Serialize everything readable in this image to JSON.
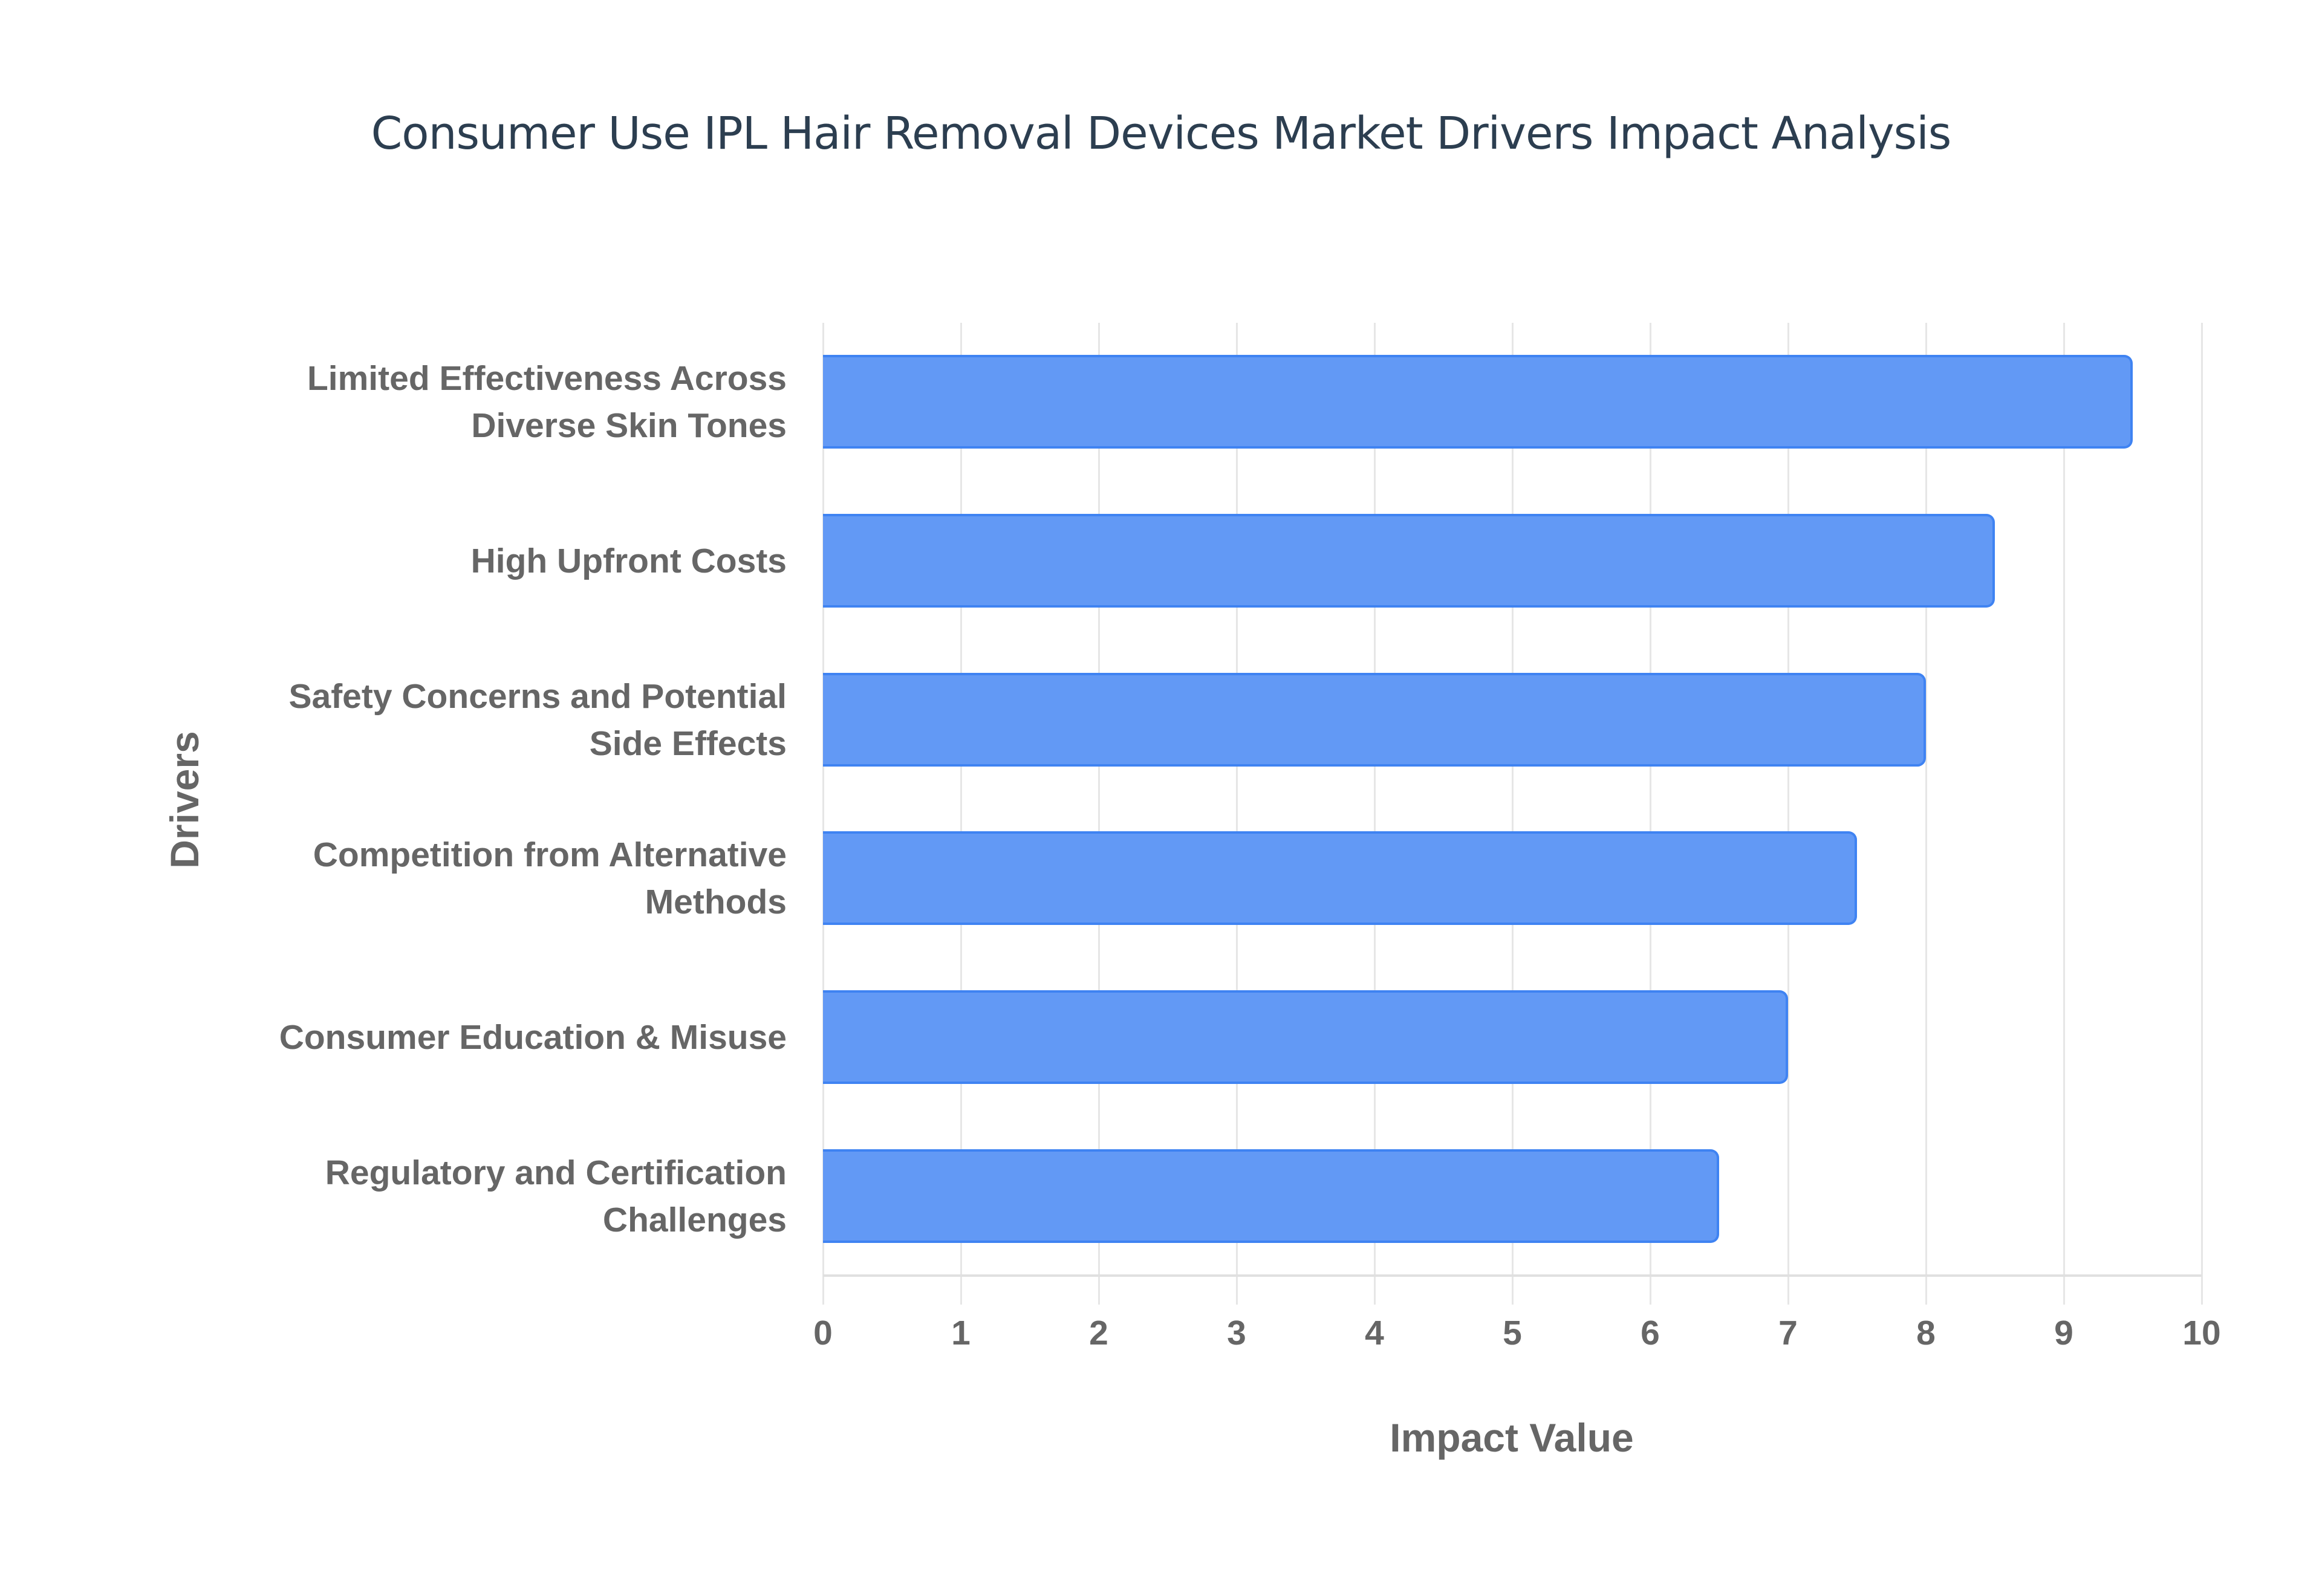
{
  "chart_data": {
    "type": "bar",
    "orientation": "horizontal",
    "title": "Consumer Use IPL Hair Removal Devices Market Drivers Impact Analysis",
    "xlabel": "Impact Value",
    "ylabel": "Drivers",
    "xlim": [
      0,
      10
    ],
    "xticks": [
      "0",
      "1",
      "2",
      "3",
      "4",
      "5",
      "6",
      "7",
      "8",
      "9",
      "10"
    ],
    "grid": true,
    "bar_color": "#6299f5",
    "bar_border_color": "#3f83f2",
    "categories": [
      "Limited Effectiveness Across Diverse Skin Tones",
      "High Upfront Costs",
      "Safety Concerns and Potential Side Effects",
      "Competition from Alternative Methods",
      "Consumer Education & Misuse",
      "Regulatory and Certification Challenges"
    ],
    "category_lines": [
      [
        "Limited Effectiveness Across",
        "Diverse Skin Tones"
      ],
      [
        "High Upfront Costs"
      ],
      [
        "Safety Concerns and Potential",
        "Side Effects"
      ],
      [
        "Competition from Alternative",
        "Methods"
      ],
      [
        "Consumer Education & Misuse"
      ],
      [
        "Regulatory and Certification",
        "Challenges"
      ]
    ],
    "values": [
      9.5,
      8.5,
      8.0,
      7.5,
      7.0,
      6.5
    ]
  }
}
